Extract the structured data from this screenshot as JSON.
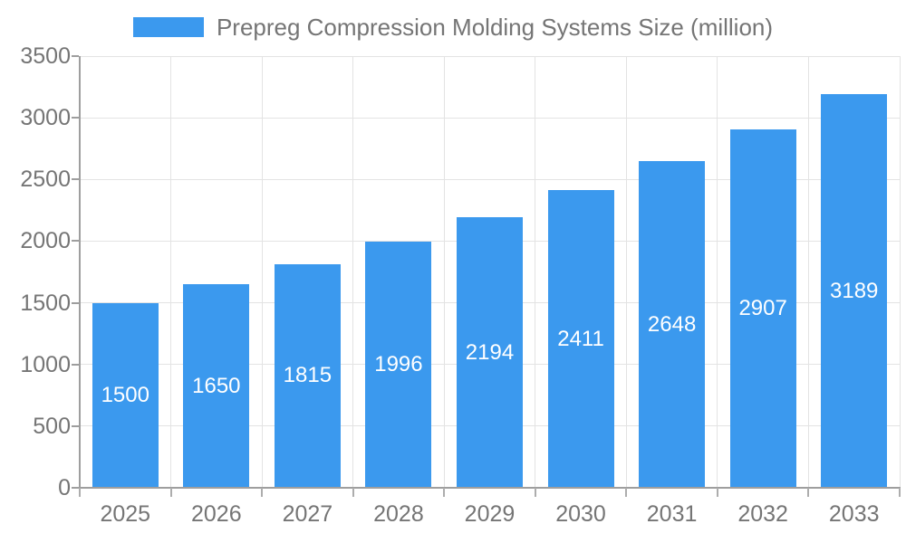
{
  "legend": {
    "label": "Prepreg Compression Molding Systems Size (million)"
  },
  "chart_data": {
    "type": "bar",
    "title": "Prepreg Compression Molding Systems Size (million)",
    "categories": [
      "2025",
      "2026",
      "2027",
      "2028",
      "2029",
      "2030",
      "2031",
      "2032",
      "2033"
    ],
    "series": [
      {
        "name": "Prepreg Compression Molding Systems Size (million)",
        "values": [
          1500,
          1650,
          1815,
          1996,
          2194,
          2411,
          2648,
          2907,
          3189
        ]
      }
    ],
    "values": [
      1500,
      1650,
      1815,
      1996,
      2194,
      2411,
      2648,
      2907,
      3189
    ],
    "value_labels": [
      "1500",
      "1650",
      "1815",
      "1996",
      "2194",
      "2411",
      "2648",
      "2907",
      "3189"
    ],
    "xlabel": "",
    "ylabel": "",
    "ylim": [
      0,
      3500
    ],
    "ytick_step": 500,
    "ytick_labels": [
      "0",
      "500",
      "1000",
      "1500",
      "2000",
      "2500",
      "3000",
      "3500"
    ],
    "grid": true,
    "legend_position": "top",
    "colors": {
      "bar": "#3B99EE",
      "axis_text": "#757575",
      "grid_line": "#E3E3E3",
      "axis_line": "#9E9E9E",
      "tick_mark": "#ADADAD",
      "value_label": "#FFFFFF",
      "background": "#FFFFFF"
    }
  }
}
